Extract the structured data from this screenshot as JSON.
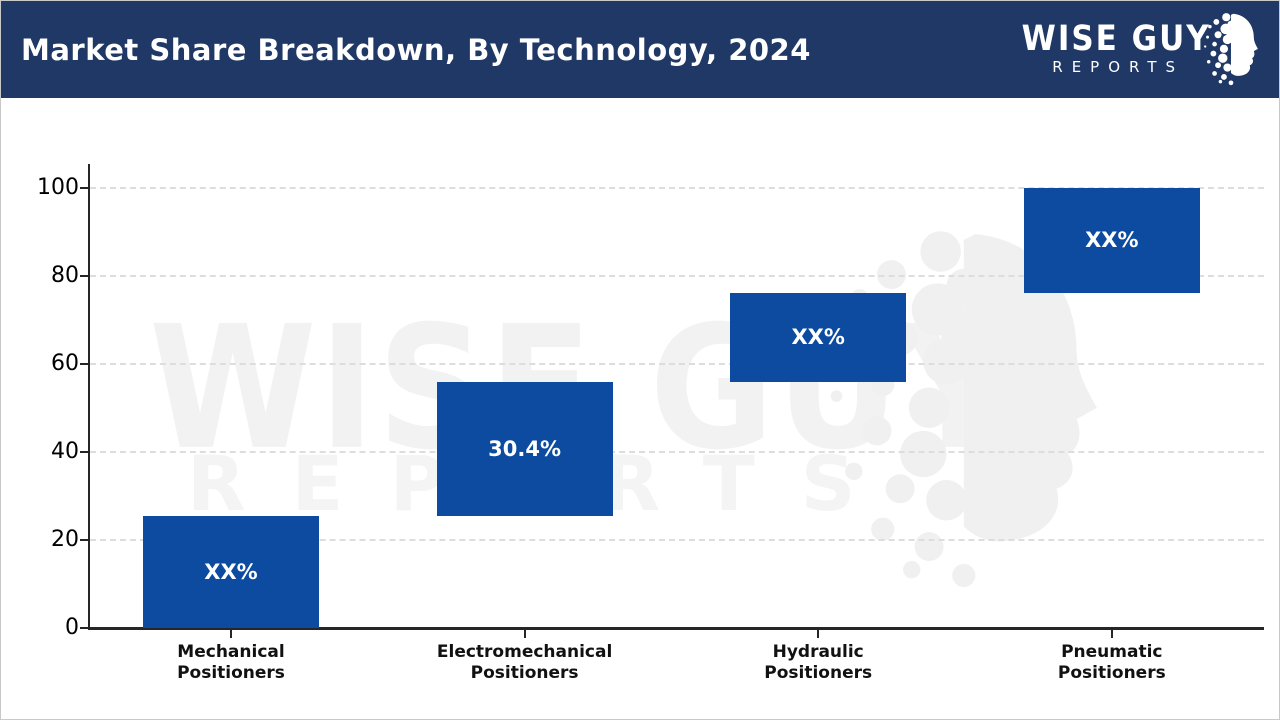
{
  "page": {
    "background": "#ffffff",
    "header_color": "#1f3866",
    "bar_color": "#0c4ba0",
    "grid_color": "#dddddd",
    "axis_color": "#262626"
  },
  "header": {
    "title": "Market Share Breakdown, By Technology, 2024",
    "logo_line1": "WISE GUY",
    "logo_line2": "REPORTS"
  },
  "watermark": {
    "line1": "WISE GUY",
    "line2": "REPORTS"
  },
  "chart_data": {
    "type": "bar",
    "subtype": "floating-waterfall-segments",
    "title": "Market Share Breakdown, By Technology, 2024",
    "categories": [
      "Mechanical Positioners",
      "Electromechanical Positioners",
      "Hydraulic Positioners",
      "Pneumatic Positioners"
    ],
    "categories_lines": [
      [
        "Mechanical",
        "Positioners"
      ],
      [
        "Electromechanical",
        "Positioners"
      ],
      [
        "Hydraulic",
        "Positioners"
      ],
      [
        "Pneumatic",
        "Positioners"
      ]
    ],
    "bars": [
      {
        "label": "XX%",
        "start": 0,
        "end": 25.5
      },
      {
        "label": "30.4%",
        "start": 25.5,
        "end": 55.9
      },
      {
        "label": "XX%",
        "start": 55.9,
        "end": 76.2
      },
      {
        "label": "XX%",
        "start": 76.2,
        "end": 100
      }
    ],
    "only_visible_value": "30.4%",
    "ylim": [
      0,
      100
    ],
    "yticks": [
      0,
      20,
      40,
      60,
      80,
      100
    ],
    "grid": "horizontal-dashed",
    "legend": "none",
    "bar_color": "#0c4ba0"
  }
}
